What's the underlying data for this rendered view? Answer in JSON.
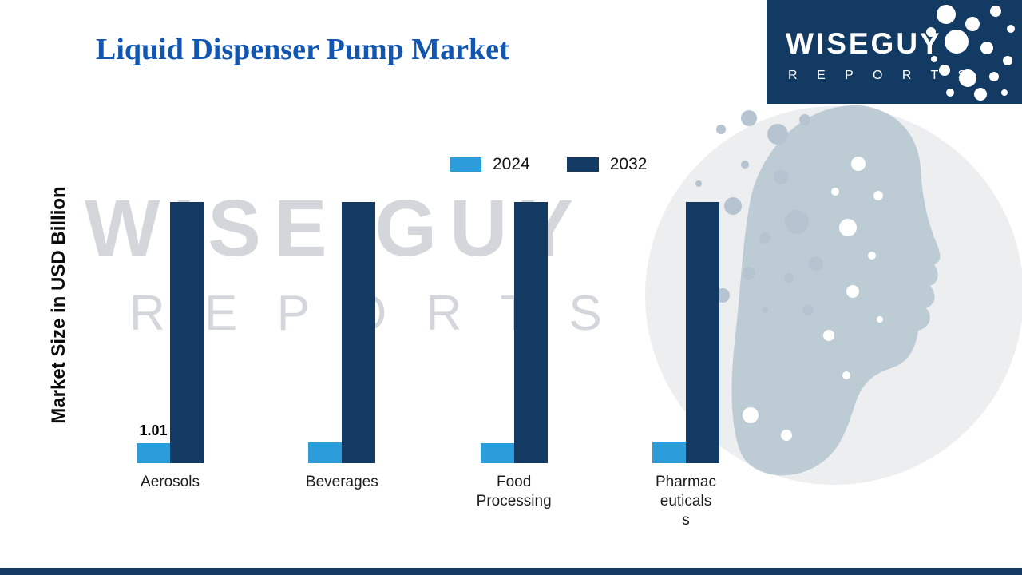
{
  "title": "Liquid Dispenser Pump Market",
  "brand": {
    "name": "WISEGUY",
    "subtitle": "R E P O R T S"
  },
  "watermark": {
    "line1": "WISE GUY",
    "line2": "R E P O R T S"
  },
  "chart_data": {
    "type": "bar",
    "title": "Liquid Dispenser Pump Market",
    "xlabel": "",
    "ylabel": "Market Size in USD Billion",
    "ylim": [
      0,
      13.2
    ],
    "grid": false,
    "legend_position": "top",
    "categories": [
      "Aerosols",
      "Beverages",
      "Food Processing",
      "Pharmaceuticals"
    ],
    "category_display": [
      [
        "Aerosols"
      ],
      [
        "Beverages"
      ],
      [
        "Food",
        "Processing"
      ],
      [
        "Pharmac",
        "euticals",
        "s"
      ]
    ],
    "series": [
      {
        "name": "2024",
        "color": "#2D9CDB",
        "values": [
          1.01,
          1.03,
          1.0,
          1.08
        ],
        "value_labels": [
          "1.01",
          "",
          "",
          ""
        ]
      },
      {
        "name": "2032",
        "color": "#123A63",
        "values": [
          13.2,
          13.2,
          13.2,
          13.2
        ],
        "value_labels": [
          "",
          "",
          "",
          ""
        ]
      }
    ]
  },
  "colors": {
    "title_blue": "#1356B0",
    "bar_2024": "#2D9CDB",
    "bar_2032": "#123A63",
    "brand_bg": "#123A63",
    "footer_bar": "#123A63",
    "watermark_gray": "#D3D7DB",
    "circle_gray": "#ECEEF0",
    "face_gray_blue": "#B5C4D0"
  }
}
